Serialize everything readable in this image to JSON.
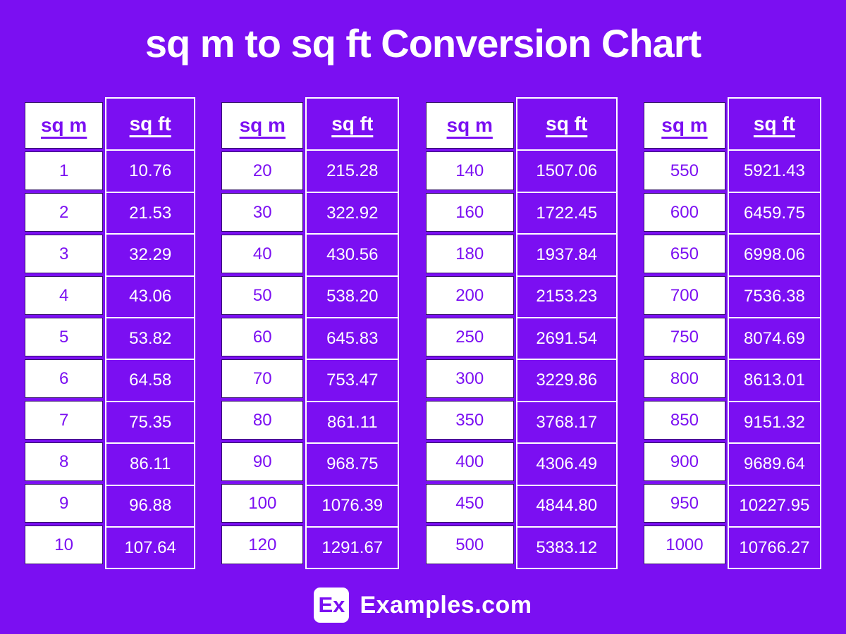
{
  "title": "sq m to sq ft Conversion Chart",
  "colors": {
    "background": "#7B0FF2",
    "cell_purple": "#7B0FF2",
    "text_on_purple": "#FFFFFF",
    "text_on_white": "#7B0FF2",
    "white_cell": "#FFFFFF",
    "dark_cell_border": "#35106B"
  },
  "footer": {
    "logo_text": "Ex",
    "brand": "Examples.com"
  },
  "tables": [
    {
      "headers": [
        "sq m",
        "sq ft"
      ],
      "rows": [
        [
          "1",
          "10.76"
        ],
        [
          "2",
          "21.53"
        ],
        [
          "3",
          "32.29"
        ],
        [
          "4",
          "43.06"
        ],
        [
          "5",
          "53.82"
        ],
        [
          "6",
          "64.58"
        ],
        [
          "7",
          "75.35"
        ],
        [
          "8",
          "86.11"
        ],
        [
          "9",
          "96.88"
        ],
        [
          "10",
          "107.64"
        ]
      ]
    },
    {
      "headers": [
        "sq m",
        "sq ft"
      ],
      "rows": [
        [
          "20",
          "215.28"
        ],
        [
          "30",
          "322.92"
        ],
        [
          "40",
          "430.56"
        ],
        [
          "50",
          "538.20"
        ],
        [
          "60",
          "645.83"
        ],
        [
          "70",
          "753.47"
        ],
        [
          "80",
          "861.11"
        ],
        [
          "90",
          "968.75"
        ],
        [
          "100",
          "1076.39"
        ],
        [
          "120",
          "1291.67"
        ]
      ]
    },
    {
      "headers": [
        "sq m",
        "sq ft"
      ],
      "rows": [
        [
          "140",
          "1507.06"
        ],
        [
          "160",
          "1722.45"
        ],
        [
          "180",
          "1937.84"
        ],
        [
          "200",
          "2153.23"
        ],
        [
          "250",
          "2691.54"
        ],
        [
          "300",
          "3229.86"
        ],
        [
          "350",
          "3768.17"
        ],
        [
          "400",
          "4306.49"
        ],
        [
          "450",
          "4844.80"
        ],
        [
          "500",
          "5383.12"
        ]
      ]
    },
    {
      "headers": [
        "sq m",
        "sq ft"
      ],
      "rows": [
        [
          "550",
          "5921.43"
        ],
        [
          "600",
          "6459.75"
        ],
        [
          "650",
          "6998.06"
        ],
        [
          "700",
          "7536.38"
        ],
        [
          "750",
          "8074.69"
        ],
        [
          "800",
          "8613.01"
        ],
        [
          "850",
          "9151.32"
        ],
        [
          "900",
          "9689.64"
        ],
        [
          "950",
          "10227.95"
        ],
        [
          "1000",
          "10766.27"
        ]
      ]
    }
  ],
  "chart_data": {
    "type": "table",
    "title": "sq m to sq ft Conversion Chart",
    "columns": [
      "sq m",
      "sq ft"
    ],
    "rows": [
      [
        1,
        10.76
      ],
      [
        2,
        21.53
      ],
      [
        3,
        32.29
      ],
      [
        4,
        43.06
      ],
      [
        5,
        53.82
      ],
      [
        6,
        64.58
      ],
      [
        7,
        75.35
      ],
      [
        8,
        86.11
      ],
      [
        9,
        96.88
      ],
      [
        10,
        107.64
      ],
      [
        20,
        215.28
      ],
      [
        30,
        322.92
      ],
      [
        40,
        430.56
      ],
      [
        50,
        538.2
      ],
      [
        60,
        645.83
      ],
      [
        70,
        753.47
      ],
      [
        80,
        861.11
      ],
      [
        90,
        968.75
      ],
      [
        100,
        1076.39
      ],
      [
        120,
        1291.67
      ],
      [
        140,
        1507.06
      ],
      [
        160,
        1722.45
      ],
      [
        180,
        1937.84
      ],
      [
        200,
        2153.23
      ],
      [
        250,
        2691.54
      ],
      [
        300,
        3229.86
      ],
      [
        350,
        3768.17
      ],
      [
        400,
        4306.49
      ],
      [
        450,
        4844.8
      ],
      [
        500,
        5383.12
      ],
      [
        550,
        5921.43
      ],
      [
        600,
        6459.75
      ],
      [
        650,
        6998.06
      ],
      [
        700,
        7536.38
      ],
      [
        750,
        8074.69
      ],
      [
        800,
        8613.01
      ],
      [
        850,
        9151.32
      ],
      [
        900,
        9689.64
      ],
      [
        950,
        10227.95
      ],
      [
        1000,
        10766.27
      ]
    ],
    "layout": "four side-by-side two-column tables on purple background, sq m cells white with purple text, sq ft cells purple with white text"
  }
}
